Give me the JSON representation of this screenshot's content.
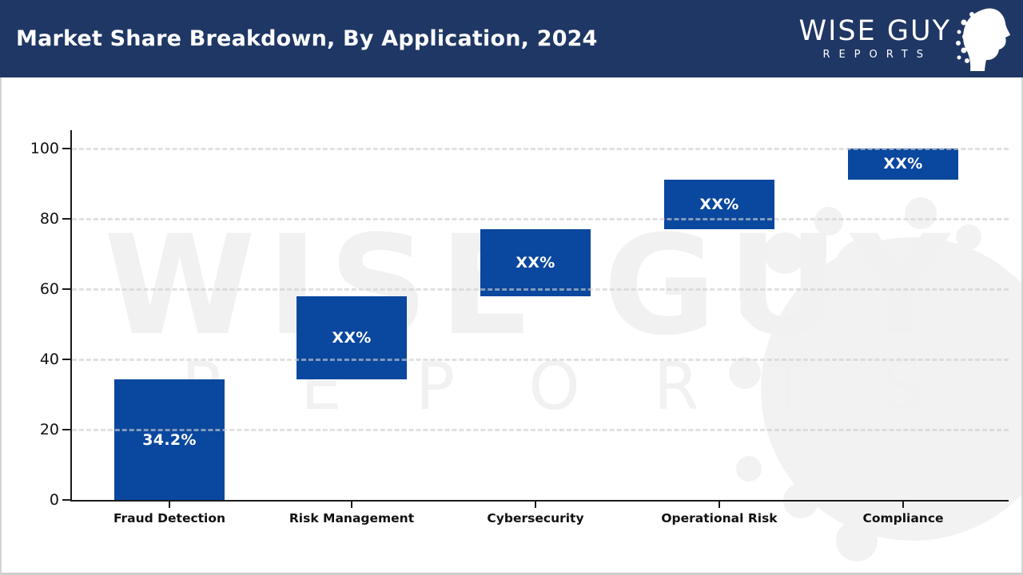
{
  "header": {
    "title": "Market Share Breakdown, By Application, 2024",
    "brand": {
      "line1": "WISE GUY",
      "line2": "REPORTS"
    }
  },
  "watermark": {
    "line1": "WISE GUY",
    "line2": "REPORTS"
  },
  "colors": {
    "header_bg": "#1f3764",
    "bar": "#0a479e",
    "bar_label": "#ffffff",
    "axis": "#1a1a1a",
    "watermark": "#f1f1f1"
  },
  "chart_data": {
    "type": "bar",
    "variant": "waterfall-cumulative",
    "title": "Market Share Breakdown, By Application, 2024",
    "categories": [
      "Fraud Detection",
      "Risk Management",
      "Cybersecurity",
      "Operational Risk",
      "Compliance"
    ],
    "segments": [
      {
        "category": "Fraud Detection",
        "start": 0,
        "end": 34.2,
        "label": "34.2%"
      },
      {
        "category": "Risk Management",
        "start": 34.2,
        "end": 58,
        "label": "XX%"
      },
      {
        "category": "Cybersecurity",
        "start": 58,
        "end": 77,
        "label": "XX%"
      },
      {
        "category": "Operational Risk",
        "start": 77,
        "end": 91,
        "label": "XX%"
      },
      {
        "category": "Compliance",
        "start": 91,
        "end": 100,
        "label": "XX%"
      }
    ],
    "yticks": [
      0,
      20,
      40,
      60,
      80,
      100
    ],
    "ylim": [
      0,
      105
    ],
    "xlabel": "",
    "ylabel": "",
    "legend": "none",
    "grid": {
      "horizontal": true,
      "style": "dashed"
    }
  }
}
